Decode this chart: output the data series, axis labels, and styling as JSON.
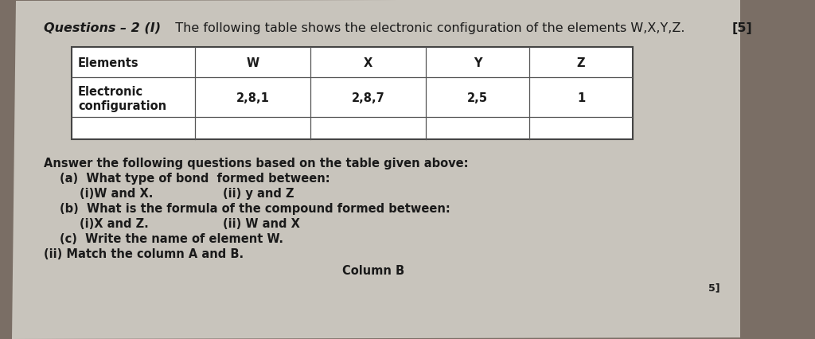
{
  "bg_color": "#7a6e65",
  "paper_color": "#c8c4bc",
  "paper_text_color": "#1a1a1a",
  "title_bold": "Questions – 2 (I)",
  "title_normal": "  The following table shows the electronic configuration of the elements W,X,Y,Z.",
  "marks_text": "[5]",
  "table": {
    "col_headers": [
      "Elements",
      "W",
      "X",
      "Y",
      "Z"
    ],
    "row1_label_line1": "Electronic",
    "row1_label_line2": "configuration",
    "row1_values": [
      "",
      "2,8,1",
      "2,8,7",
      "2,5",
      "1"
    ],
    "extra_row": true
  },
  "q0": "Answer the following questions based on the table given above:",
  "q1": "(a)  What type of bond  formed between:",
  "q2_i": "(i)W and X.",
  "q2_ii": "(ii) y and Z",
  "q3": "(b)  What is the formula of the compound formed between:",
  "q4_i": "(i)X and Z.",
  "q4_ii": "(ii) W and X",
  "q5": "(c)  Write the name of element W.",
  "q6": "(ii) Match the column A and B.",
  "col_b": "Column B",
  "stamp": "5]"
}
